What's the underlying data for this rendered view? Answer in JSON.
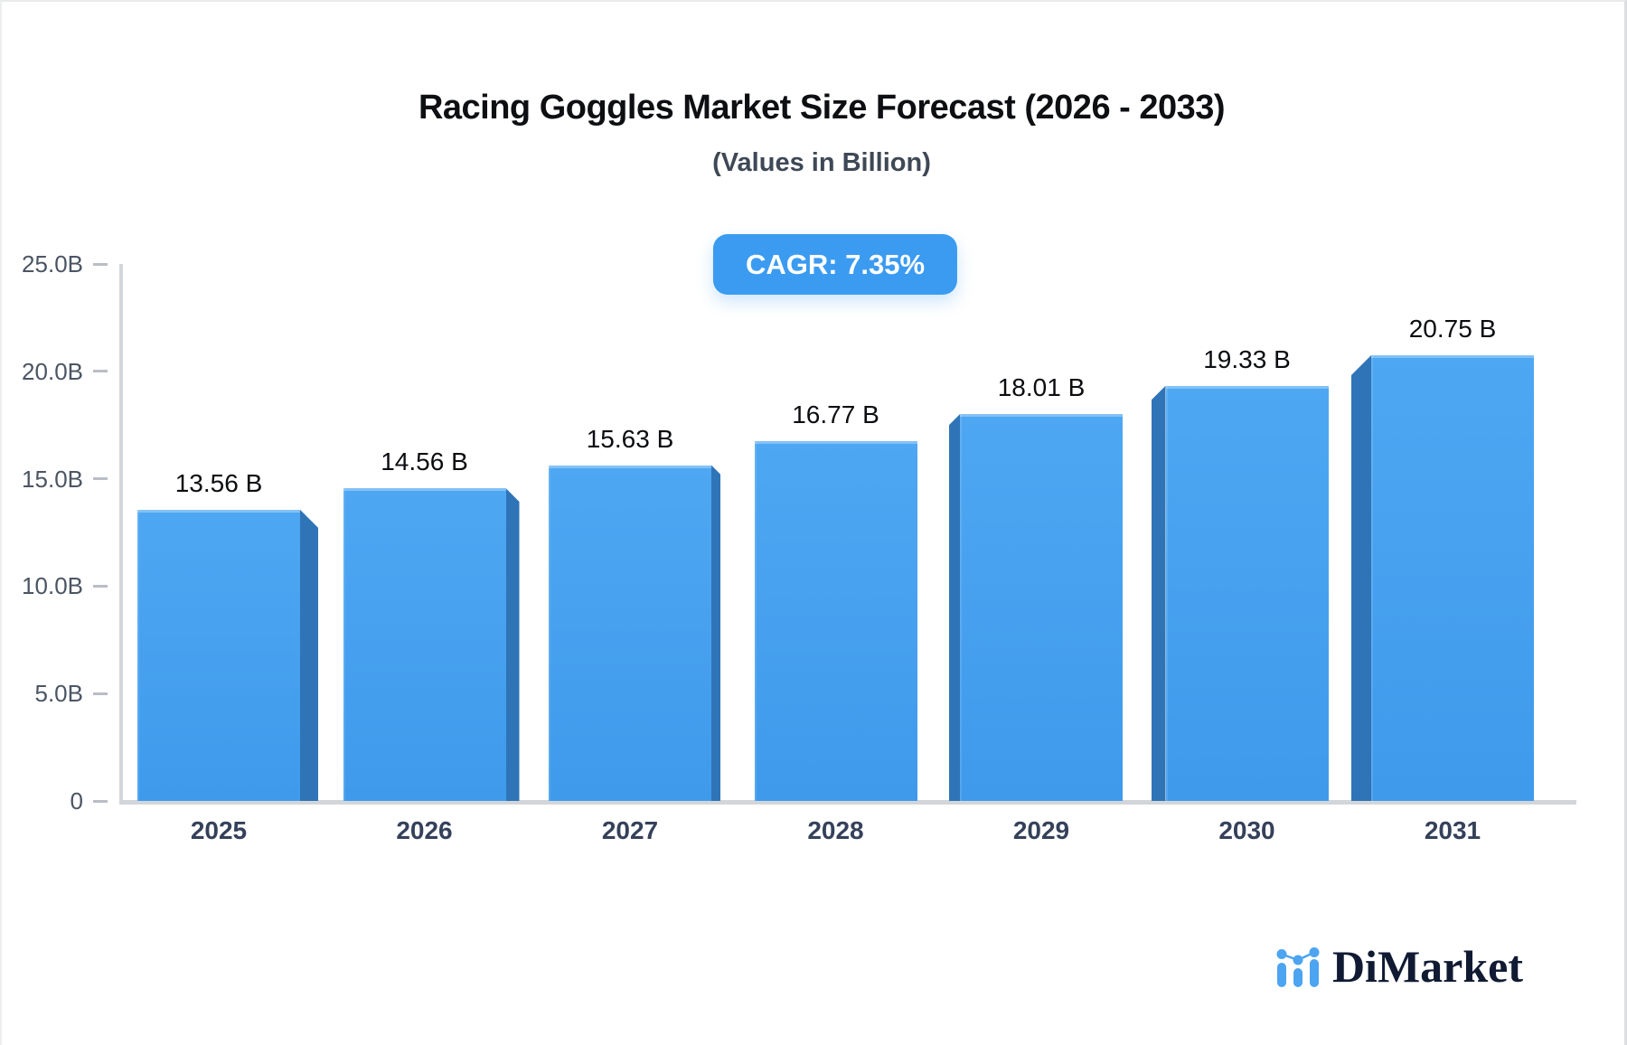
{
  "header": {
    "title": "Racing Goggles Market Size Forecast (2026 - 2033)",
    "subtitle": "(Values in Billion)",
    "cagr_label": "CAGR: 7.35%"
  },
  "chart_data": {
    "type": "bar",
    "title": "Racing Goggles Market Size Forecast (2026 - 2033)",
    "subtitle": "(Values in Billion)",
    "annotation": "CAGR: 7.35%",
    "categories": [
      "2025",
      "2026",
      "2027",
      "2028",
      "2029",
      "2030",
      "2031"
    ],
    "values": [
      13.56,
      14.56,
      15.63,
      16.77,
      18.01,
      19.33,
      20.75
    ],
    "bar_labels": [
      "13.56 B",
      "14.56 B",
      "15.63 B",
      "16.77 B",
      "18.01 B",
      "19.33 B",
      "20.75 B"
    ],
    "xlabel": "",
    "ylabel": "",
    "ylim": [
      0,
      25
    ],
    "yticks": [
      {
        "label": "25.0B",
        "value": 25
      },
      {
        "label": "20.0B",
        "value": 20
      },
      {
        "label": "15.0B",
        "value": 15
      },
      {
        "label": "10.0B",
        "value": 10
      },
      {
        "label": "5.0B",
        "value": 5
      },
      {
        "label": "0",
        "value": 0
      }
    ],
    "grid": false,
    "legend": false,
    "bar_color": "#42a0ef",
    "bar_side_color": "#2e74b6"
  },
  "branding": {
    "logo_text": "DiMarket"
  },
  "colors": {
    "accent_blue": "#3b9bf1",
    "bar_blue": "#42a0ef",
    "bar_side_blue": "#2e74b6",
    "axis_gray": "#d2d5da",
    "tick_label_gray": "#4b5563",
    "x_label_slate": "#35415a",
    "value_label_black": "#0b0d10",
    "logo_navy": "#101b33",
    "logo_icon_blue": "#4da4f1"
  }
}
